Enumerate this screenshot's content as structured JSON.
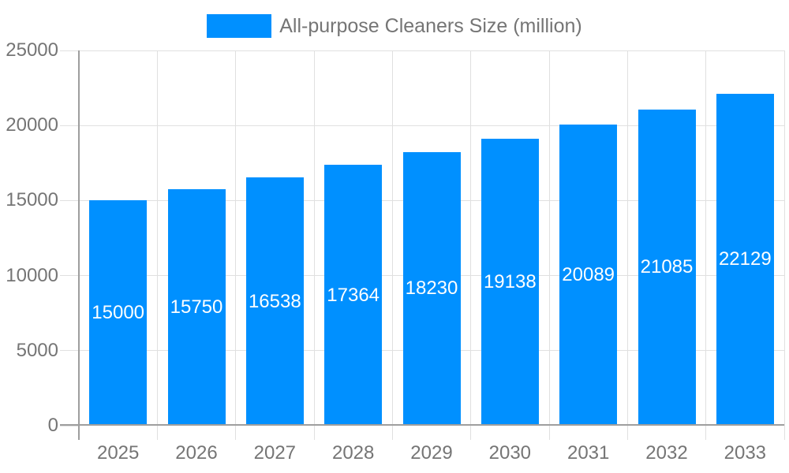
{
  "chart_data": {
    "type": "bar",
    "title": "All-purpose Cleaners Size (million)",
    "categories": [
      "2025",
      "2026",
      "2027",
      "2028",
      "2029",
      "2030",
      "2031",
      "2032",
      "2033"
    ],
    "series": [
      {
        "name": "All-purpose Cleaners Size (million)",
        "values": [
          15000,
          15750,
          16538,
          17364,
          18230,
          19138,
          20089,
          21085,
          22129
        ]
      }
    ],
    "xlabel": "",
    "ylabel": "",
    "ylim": [
      0,
      25000
    ],
    "yticks": [
      0,
      5000,
      10000,
      15000,
      20000,
      25000
    ],
    "grid": true,
    "legend_position": "top-center",
    "bar_value_labels_visible": true,
    "colors": {
      "bar": "#0090FF",
      "bar_label": "#FFFFFF",
      "axis_text": "#757575",
      "grid_line": "#E0E0E0",
      "axis_line": "#9E9E9E"
    }
  }
}
